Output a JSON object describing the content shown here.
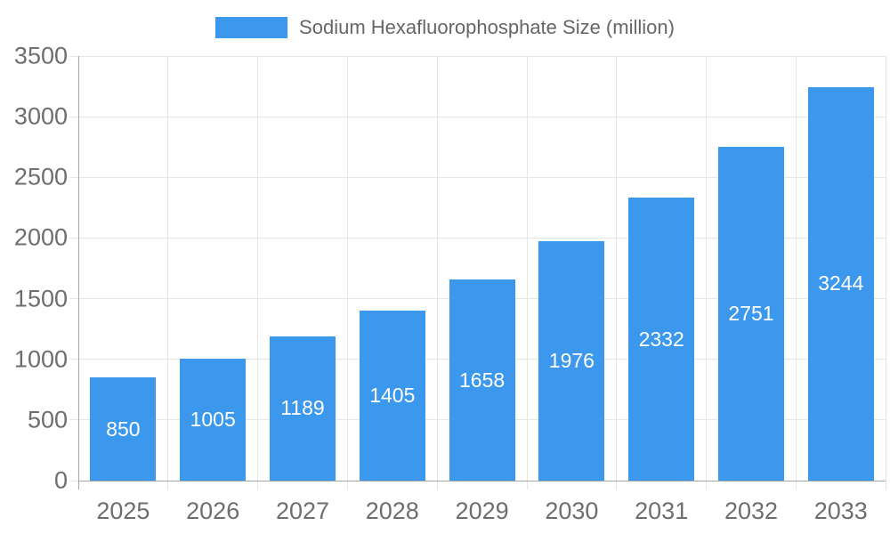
{
  "legend": {
    "label": "Sodium Hexafluorophosphate Size (million)",
    "swatch_color": "#3b98ec"
  },
  "chart_data": {
    "type": "bar",
    "title": "Sodium Hexafluorophosphate Size (million)",
    "categories": [
      "2025",
      "2026",
      "2027",
      "2028",
      "2029",
      "2030",
      "2031",
      "2032",
      "2033"
    ],
    "values": [
      850,
      1005,
      1189,
      1405,
      1658,
      1976,
      2332,
      2751,
      3244
    ],
    "xlabel": "",
    "ylabel": "",
    "ylim": [
      0,
      3500
    ],
    "ytick_step": 500,
    "ytick_labels": [
      "0",
      "500",
      "1000",
      "1500",
      "2000",
      "2500",
      "3000",
      "3500"
    ],
    "grid": true,
    "legend_position": "top-center",
    "value_labels": "inside-center",
    "colors": {
      "bar": "#3b98ec",
      "value_label_text": "#ffffff",
      "axis_text": "#6e6e6e",
      "legend_text": "#666666",
      "gridline": "#e6e6e6",
      "axis_line": "#a6a6a6",
      "background": "#ffffff"
    }
  }
}
